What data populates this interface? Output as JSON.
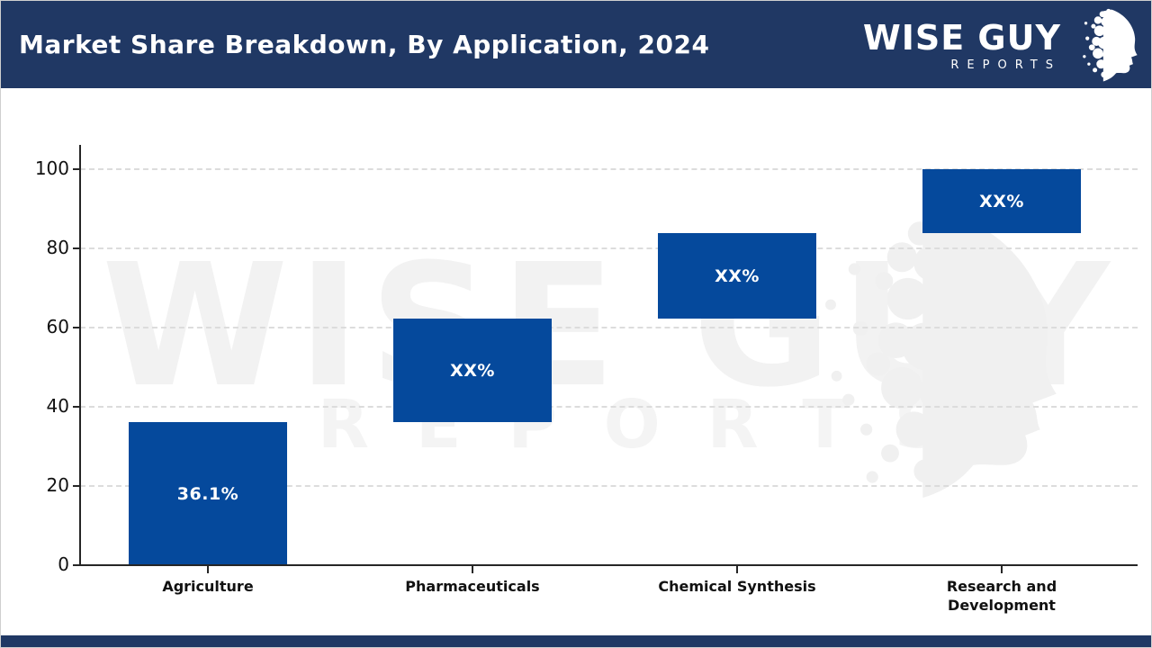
{
  "header": {
    "title": "Market Share Breakdown, By Application, 2024",
    "logo": {
      "line1": "WISE GUY",
      "line2": "REPORTS"
    }
  },
  "watermark": {
    "line1": "WISE GUY",
    "line2": "REPORTS"
  },
  "colors": {
    "header_bg": "#203864",
    "bar_fill": "#05499c",
    "grid": "#dcdcdc",
    "axis": "#262626",
    "bar_label_text": "#ffffff",
    "watermark_text": "#f2f2f2"
  },
  "icons": {
    "logo_face": "dotted-head-profile-icon",
    "watermark_face": "dotted-head-profile-icon"
  },
  "chart_data": {
    "type": "bar",
    "subtype": "waterfall-floating-segments",
    "title": "Market Share Breakdown, By Application, 2024",
    "categories": [
      "Agriculture",
      "Pharmaceuticals",
      "Chemical Synthesis",
      "Research and Development"
    ],
    "segments": [
      {
        "category": "Agriculture",
        "start": 0,
        "end": 36.1,
        "label": "36.1%"
      },
      {
        "category": "Pharmaceuticals",
        "start": 36.1,
        "end": 62.3,
        "label": "XX%"
      },
      {
        "category": "Chemical Synthesis",
        "start": 62.3,
        "end": 83.8,
        "label": "XX%"
      },
      {
        "category": "Research and Development",
        "start": 83.8,
        "end": 100,
        "label": "XX%"
      }
    ],
    "xlabel": "",
    "ylabel": "",
    "ylim": [
      0,
      100
    ],
    "yticks": [
      0,
      20,
      40,
      60,
      80,
      100
    ],
    "grid": "horizontal-dashed",
    "legend": "none"
  }
}
